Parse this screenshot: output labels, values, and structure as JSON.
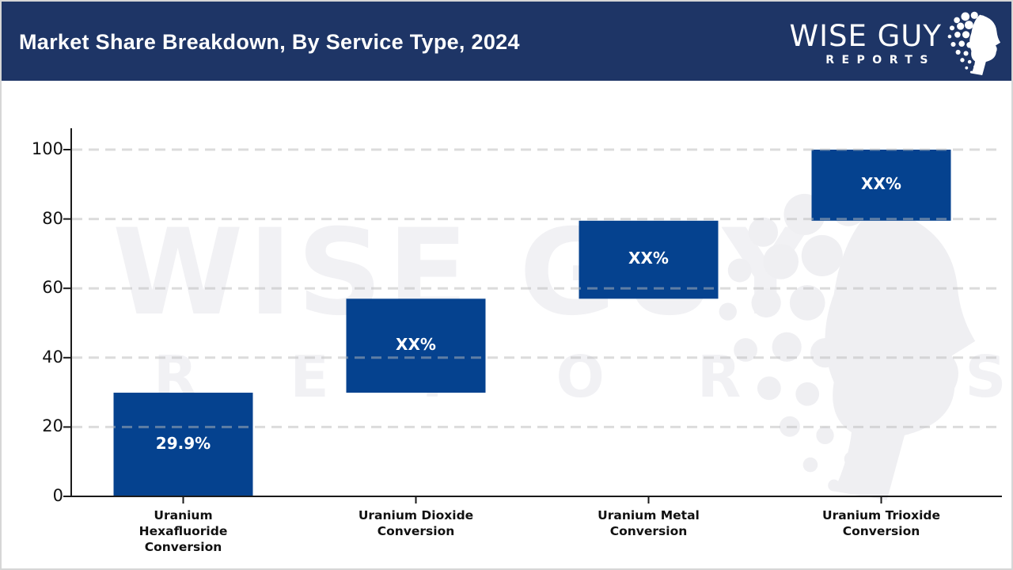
{
  "header": {
    "title": "Market Share Breakdown, By Service Type, 2024",
    "logo": {
      "wordmark": "WISE GUY",
      "subtext": "REPORTS"
    }
  },
  "watermark": {
    "wordmark": "WISE GUY",
    "subtext": "R E P O R T S"
  },
  "chart_data": {
    "type": "bar",
    "subtype": "waterfall",
    "title": "Market Share Breakdown, By Service Type, 2024",
    "categories": [
      [
        "Uranium",
        "Hexafluoride",
        "Conversion"
      ],
      [
        "Uranium Dioxide",
        "Conversion"
      ],
      [
        "Uranium Metal",
        "Conversion"
      ],
      [
        "Uranium Trioxide",
        "Conversion"
      ]
    ],
    "segments": [
      {
        "start": 0,
        "end": 29.9,
        "label": "29.9%"
      },
      {
        "start": 29.9,
        "end": 57,
        "label": "XX%"
      },
      {
        "start": 57,
        "end": 79.5,
        "label": "XX%"
      },
      {
        "start": 79.5,
        "end": 100,
        "label": "XX%"
      }
    ],
    "yticks": [
      0,
      20,
      40,
      60,
      80,
      100
    ],
    "ylim": [
      0,
      106
    ],
    "xlabel": "",
    "ylabel": "",
    "legend": "none",
    "grid": {
      "axis": "y",
      "style": "dashed"
    },
    "colors": {
      "bar": "#05428f",
      "bar_label": "#ffffff",
      "axis": "#1a1a1a",
      "gridline": "#e2e2e2",
      "header_bg": "#1e3566",
      "title_text": "#ffffff",
      "watermark": "#f1f1f4"
    }
  }
}
